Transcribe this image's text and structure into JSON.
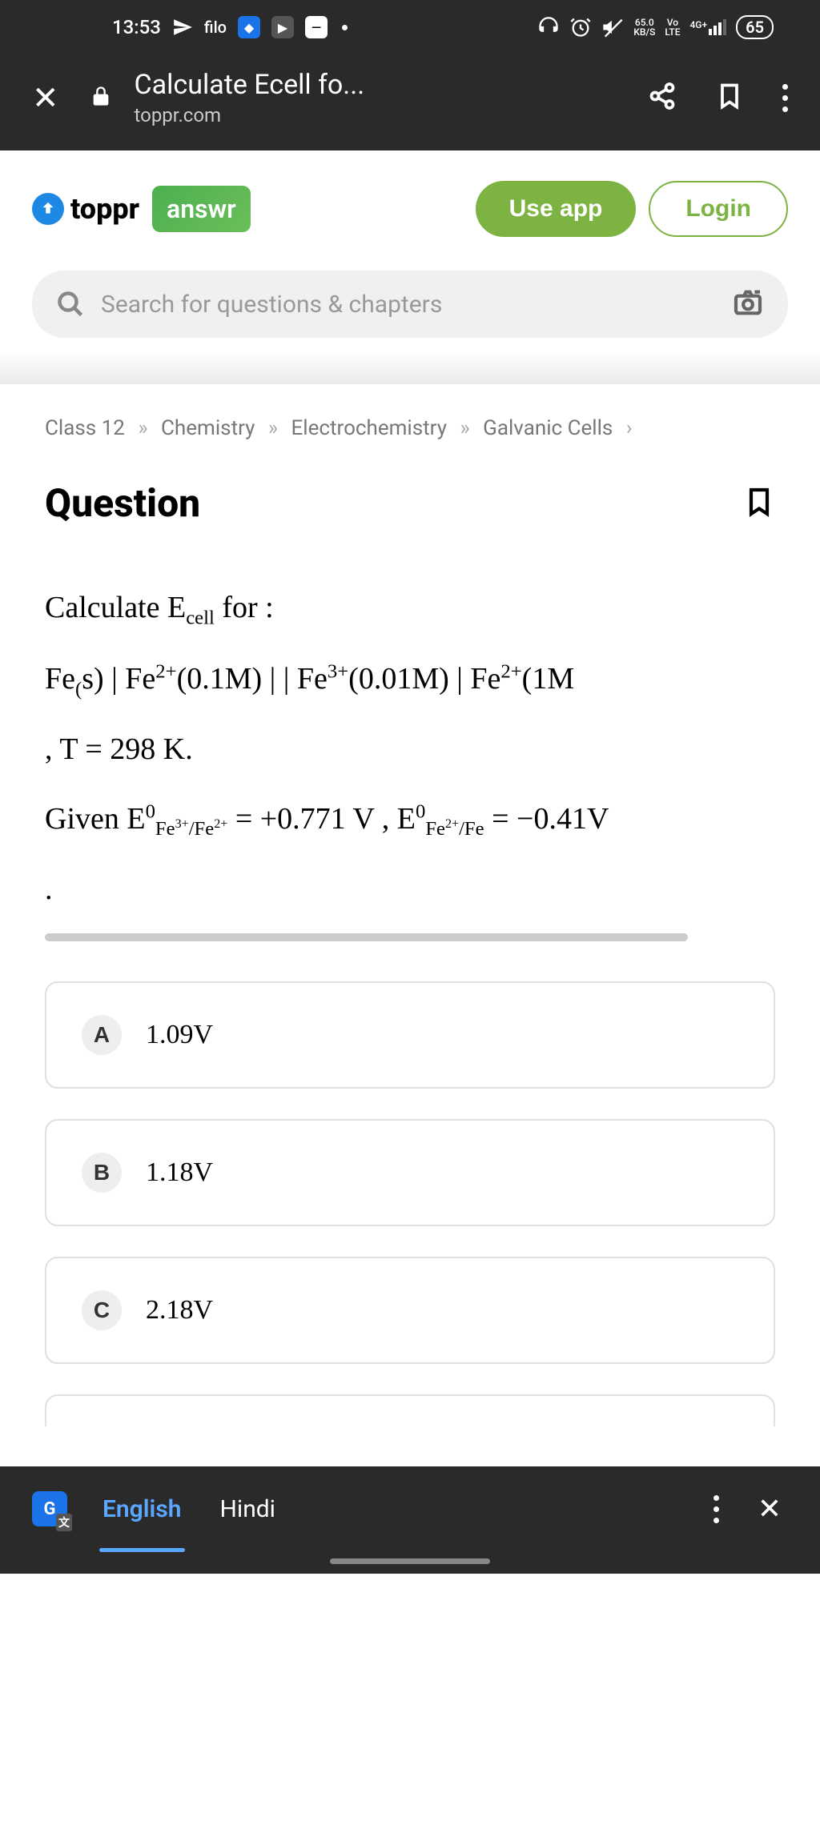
{
  "status": {
    "time": "13:53",
    "filo_label": "filo",
    "net_speed_top": "65.0",
    "net_speed_bottom": "KB/S",
    "volte_top": "Vo",
    "volte_bottom": "LTE",
    "signal_label": "4G+",
    "battery": "65"
  },
  "chrome": {
    "title": "Calculate Ecell fo...",
    "host": "toppr.com"
  },
  "app": {
    "brand": "toppr",
    "answr": "answr",
    "use_app": "Use app",
    "login": "Login",
    "search_placeholder": "Search for questions & chapters"
  },
  "breadcrumb": {
    "a": "Class 12",
    "b": "Chemistry",
    "c": "Electrochemistry",
    "d": "Galvanic Cells"
  },
  "question": {
    "heading": "Question",
    "line1_html": "Calculate E<sub>cell</sub> for :",
    "line2_html": "Fe<sub>(</sub>s) | Fe<sup>2+</sup>(0.1M) |  | Fe<sup>3+</sup>(0.01M) | Fe<sup>2+</sup>(1M",
    "line3_html": ", T = 298 K.",
    "line4_html": "Given E<sup>0</sup><sub>Fe<sup>3+</sup>/Fe<sup>2+</sup></sub> = +0.771 V , E<sup>0</sup><sub>Fe<sup>2+</sup>/Fe</sub> = −0.41V",
    "line5_html": "."
  },
  "options": [
    {
      "letter": "A",
      "text": "1.09V"
    },
    {
      "letter": "B",
      "text": "1.18V"
    },
    {
      "letter": "C",
      "text": "2.18V"
    }
  ],
  "translate": {
    "lang_active": "English",
    "lang_other": "Hindi"
  },
  "colors": {
    "dark_bg": "#2a2a2a",
    "green_fill": "#7cb342",
    "green_outline": "#7cb342",
    "blue_brand": "#1e88e5",
    "translate_blue": "#5aa7ff",
    "search_bg": "#f0f0f0",
    "placeholder": "#999999",
    "breadcrumb_text": "#777777",
    "option_border": "#e0e0e0",
    "option_letter_bg": "#eeeeee"
  }
}
